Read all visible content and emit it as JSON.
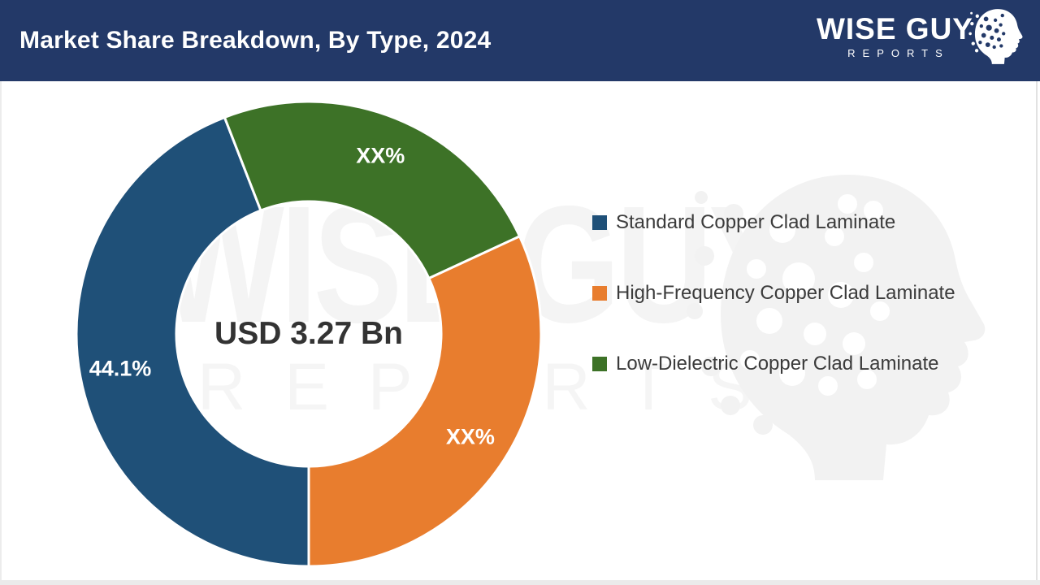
{
  "header": {
    "title": "Market Share Breakdown, By Type, 2024",
    "logo_line1": "WISE GUY",
    "logo_line2": "REPORTS"
  },
  "watermark": {
    "line1": "WISE GUY",
    "line2": "REPORTS"
  },
  "colors": {
    "header_bg": "#233968",
    "blue": "#1f5078",
    "orange": "#e87d2e",
    "green": "#3d7227",
    "center_text": "#333333",
    "legend_text": "#3b3b3b",
    "watermark": "#f2f2f2"
  },
  "chart_data": {
    "type": "donut",
    "title": "Market Share Breakdown, By Type, 2024",
    "center_label": "USD 3.27 Bn",
    "start_angle_deg": 180,
    "direction": "clockwise",
    "slices": [
      {
        "name": "Standard Copper Clad Laminate",
        "label": "44.1%",
        "value_pct": 44.1,
        "color": "#1f5078"
      },
      {
        "name": "Low-Dielectric Copper Clad Laminate",
        "label": "XX%",
        "value_pct": 24.0,
        "color": "#3d7227"
      },
      {
        "name": "High-Frequency Copper Clad Laminate",
        "label": "XX%",
        "value_pct": 31.9,
        "color": "#e87d2e"
      }
    ],
    "legend": [
      {
        "label": "Standard Copper Clad Laminate",
        "color": "#1f5078"
      },
      {
        "label": "High-Frequency Copper Clad Laminate",
        "color": "#e87d2e"
      },
      {
        "label": "Low-Dielectric Copper Clad Laminate",
        "color": "#3d7227"
      }
    ],
    "legend_position": "right"
  }
}
